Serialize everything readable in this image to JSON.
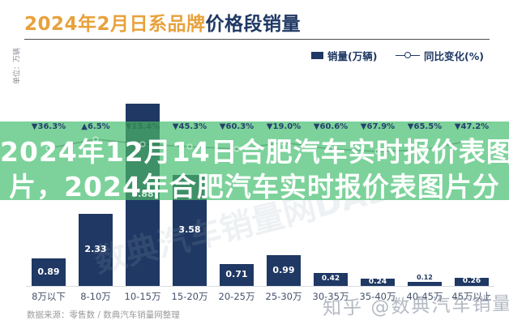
{
  "header": {
    "title_highlight": "2024年2月日系品牌",
    "title_rest": "价格段销量"
  },
  "legend": {
    "bar_label": "销量(万辆)",
    "line_label": "同比变化(%)"
  },
  "axis": {
    "unit_label": "单位：万辆"
  },
  "chart_data": {
    "type": "bar",
    "title": "2024年2月日系品牌价格段销量",
    "ylabel": "单位：万辆",
    "legend_position": "top-right",
    "grid": false,
    "categories": [
      "8万以下",
      "8-10万",
      "10-15万",
      "15-20万",
      "20-25万",
      "25-30万",
      "30-35万",
      "35-40万",
      "40-45万",
      "45万以上"
    ],
    "series": [
      {
        "name": "销量(万辆)",
        "type": "bar",
        "values": [
          0.89,
          2.33,
          5.88,
          3.58,
          0.71,
          0.99,
          0.42,
          0.24,
          0.12,
          0.26
        ],
        "value_labels": [
          "0.89",
          "2.33",
          "5.88",
          "3.58",
          "0.71",
          "0.99",
          "0.42",
          "0.24",
          "0.12",
          "0.26"
        ],
        "obscured_value_indexes": [
          8
        ],
        "bar_color": "#1F3864"
      },
      {
        "name": "同比变化(%)",
        "type": "line",
        "labels": [
          {
            "label": "36.3%",
            "direction": "down"
          },
          {
            "label": "6.5%",
            "direction": "up"
          },
          {
            "label": "15.4%",
            "direction": "down",
            "obscured": true
          },
          {
            "label": "45.3%",
            "direction": "down"
          },
          {
            "label": "60.3%",
            "direction": "down"
          },
          {
            "label": "19.0%",
            "direction": "down"
          },
          {
            "label": "60.6%",
            "direction": "down"
          },
          {
            "label": "67.9%",
            "direction": "down"
          },
          {
            "label": "65.5%",
            "direction": "down"
          },
          {
            "label": "47.2%",
            "direction": "down"
          }
        ]
      }
    ]
  },
  "overlay": {
    "line1": "2024年12月14日合肥汽车实时报价表图",
    "line2": "片，2024年合肥汽车实时报价表图片分",
    "band_color": "#7CD29A",
    "text_color": "#FFFFFF"
  },
  "footer": {
    "source": "数据来源：零售数 / 数典汽车销量网整理"
  },
  "watermarks": {
    "bottom_right": "知乎 @数典汽车销量网",
    "diagonal": "数典汽车销量网DADIC"
  },
  "colors": {
    "bar": "#1F3864",
    "title_highlight": "#E8A13C",
    "title_rest": "#1F3864",
    "band_green": "#7CD29A",
    "bar_through_band": "#3E9066",
    "percent_label": "#27406E"
  }
}
